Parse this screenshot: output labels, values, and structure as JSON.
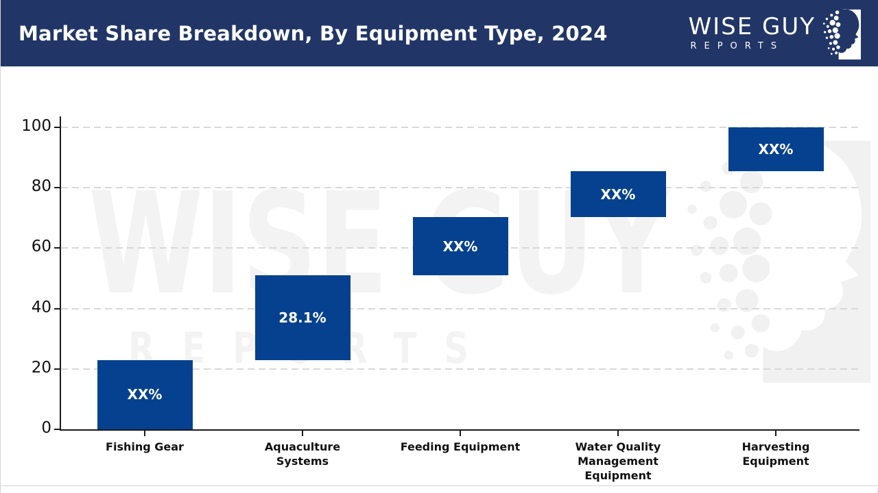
{
  "header": {
    "title": "Market Share Breakdown, By Equipment Type, 2024",
    "logo": {
      "line1": "WISE GUY",
      "line2": "REPORTS"
    }
  },
  "watermark": {
    "line1": "WISE GUY",
    "line2": "REPORTS"
  },
  "colors": {
    "header_bg": "#213667",
    "bar": "#05418f",
    "grid": "#d8d8d8",
    "watermark": "#f3f3f3",
    "bar_label": "#ffffff",
    "title_text": "#ffffff",
    "axis_text": "#111111"
  },
  "chart_data": {
    "type": "bar",
    "subtype": "waterfall",
    "title": "Market Share Breakdown, By Equipment Type, 2024",
    "xlabel": "",
    "ylabel": "",
    "ylim": [
      0,
      100
    ],
    "yticks": [
      0,
      20,
      40,
      60,
      80,
      100
    ],
    "grid": "horizontal-dashed",
    "legend": "none",
    "categories": [
      "Fishing Gear",
      "Aquaculture Systems",
      "Feeding Equipment",
      "Water Quality Management Equipment",
      "Harvesting Equipment"
    ],
    "category_display": [
      "Fishing Gear",
      "Aquaculture\nSystems",
      "Feeding Equipment",
      "Water Quality\nManagement\nEquipment",
      "Harvesting\nEquipment"
    ],
    "bars": [
      {
        "category": "Fishing Gear",
        "start": 0,
        "end": 22.9,
        "value": 22.9,
        "label": "XX%"
      },
      {
        "category": "Aquaculture Systems",
        "start": 22.9,
        "end": 51.0,
        "value": 28.1,
        "label": "28.1%"
      },
      {
        "category": "Feeding Equipment",
        "start": 51.0,
        "end": 70.2,
        "value": 19.2,
        "label": "XX%"
      },
      {
        "category": "Water Quality Management Equipment",
        "start": 70.2,
        "end": 85.5,
        "value": 15.3,
        "label": "XX%"
      },
      {
        "category": "Harvesting Equipment",
        "start": 85.5,
        "end": 100,
        "value": 14.5,
        "label": "XX%"
      }
    ]
  }
}
